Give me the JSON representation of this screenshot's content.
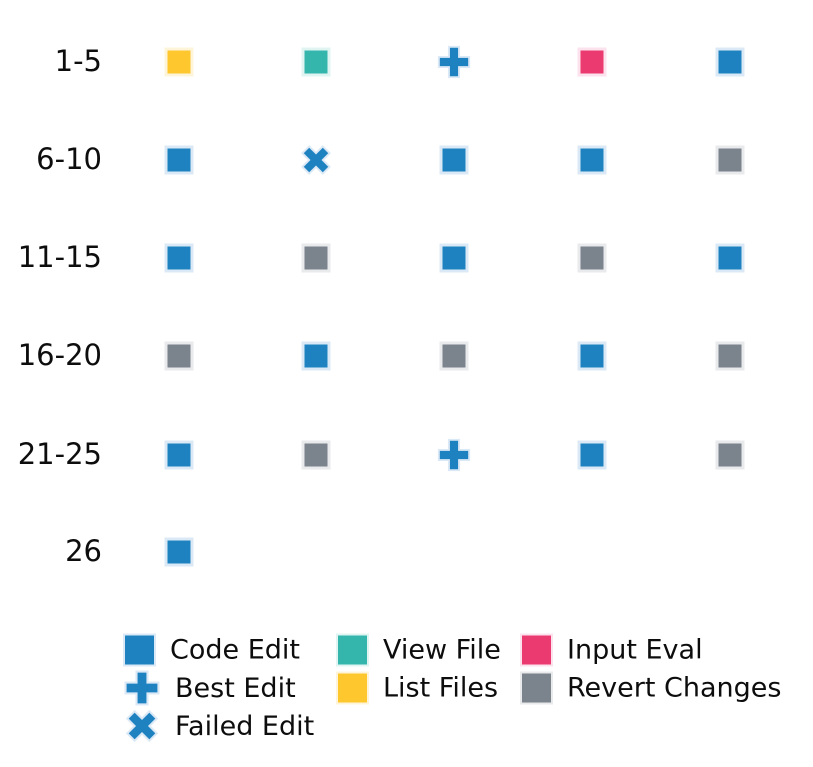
{
  "figure": {
    "background": "#ffffff",
    "text_color": "#0d0d0d"
  },
  "markers": {
    "code_edit": {
      "label": "Code Edit",
      "shape": "square",
      "color": "#1f82c0",
      "halo": "#dbe9f6"
    },
    "best_edit": {
      "label": "Best Edit",
      "shape": "plus",
      "color": "#1f82c0",
      "halo": "#dbe9f6"
    },
    "failed_edit": {
      "label": "Failed Edit",
      "shape": "x",
      "color": "#1f82c0",
      "halo": "#dbe9f6"
    },
    "view_file": {
      "label": "View File",
      "shape": "square",
      "color": "#34b6ac",
      "halo": "#e0f4f2"
    },
    "list_files": {
      "label": "List Files",
      "shape": "square",
      "color": "#fec72e",
      "halo": "#fdf4da"
    },
    "input_eval": {
      "label": "Input Eval",
      "shape": "square",
      "color": "#eb3a6f",
      "halo": "#fbe2ec"
    },
    "revert_changes": {
      "label": "Revert Changes",
      "shape": "square",
      "color": "#7b838c",
      "halo": "#e9eaec"
    }
  },
  "grid": {
    "rows": [
      {
        "label": "1-5",
        "cells": [
          "list_files",
          "view_file",
          "best_edit",
          "input_eval",
          "code_edit"
        ]
      },
      {
        "label": "6-10",
        "cells": [
          "code_edit",
          "failed_edit",
          "code_edit",
          "code_edit",
          "revert_changes"
        ]
      },
      {
        "label": "11-15",
        "cells": [
          "code_edit",
          "revert_changes",
          "code_edit",
          "revert_changes",
          "code_edit"
        ]
      },
      {
        "label": "16-20",
        "cells": [
          "revert_changes",
          "code_edit",
          "revert_changes",
          "code_edit",
          "revert_changes"
        ]
      },
      {
        "label": "21-25",
        "cells": [
          "code_edit",
          "revert_changes",
          "best_edit",
          "code_edit",
          "revert_changes"
        ]
      },
      {
        "label": "26",
        "cells": [
          "code_edit"
        ]
      }
    ]
  },
  "legend": {
    "rows": [
      [
        "code_edit",
        "view_file",
        "input_eval"
      ],
      [
        "best_edit",
        "list_files",
        "revert_changes"
      ],
      [
        "failed_edit"
      ]
    ]
  },
  "chart_data": {
    "type": "scatter",
    "title": "",
    "xlabel": "",
    "ylabel": "",
    "description": "Timeline of 26 sequential actions plotted 5 per row; marker shape and color encode the action type taken at each step.",
    "categories": [
      "1-5",
      "6-10",
      "11-15",
      "16-20",
      "21-25",
      "26"
    ],
    "columns_per_row": 5,
    "sequence": [
      "List Files",
      "View File",
      "Best Edit",
      "Input Eval",
      "Code Edit",
      "Code Edit",
      "Failed Edit",
      "Code Edit",
      "Code Edit",
      "Revert Changes",
      "Code Edit",
      "Revert Changes",
      "Code Edit",
      "Revert Changes",
      "Code Edit",
      "Revert Changes",
      "Code Edit",
      "Revert Changes",
      "Code Edit",
      "Revert Changes",
      "Code Edit",
      "Revert Changes",
      "Best Edit",
      "Code Edit",
      "Revert Changes",
      "Code Edit"
    ],
    "legend_entries": [
      "Code Edit",
      "Best Edit",
      "Failed Edit",
      "View File",
      "List Files",
      "Input Eval",
      "Revert Changes"
    ],
    "legend_position": "bottom",
    "grid": "off",
    "axes_visible": false
  }
}
